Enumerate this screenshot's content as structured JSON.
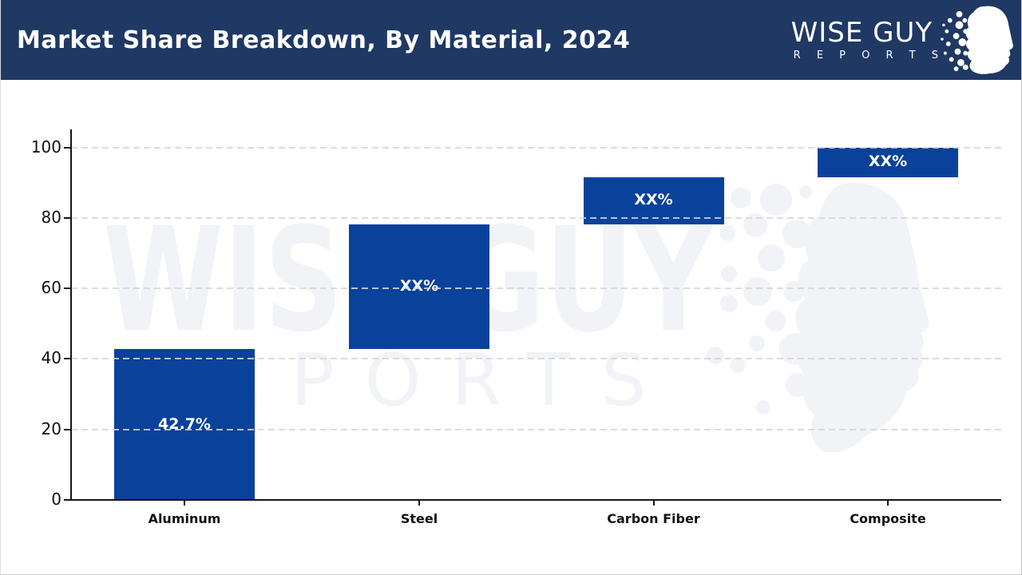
{
  "header": {
    "title": "Market Share Breakdown, By Material, 2024",
    "logo": {
      "line1": "WISE GUY",
      "line2": "R E P O R T S"
    }
  },
  "watermark": {
    "line1": "WISE GUY",
    "line2": "REPORTS"
  },
  "colors": {
    "header_bg": "#1f3864",
    "bar": "#0a429b",
    "grid": "#d9d9d9",
    "axis": "#151515",
    "bar_label": "#ffffff",
    "watermark": "#f2f3f6",
    "background": "#ffffff"
  },
  "chart_data": {
    "type": "bar",
    "subtype": "waterfall",
    "title": "Market Share Breakdown, By Material, 2024",
    "categories": [
      "Aluminum",
      "Steel",
      "Carbon Fiber",
      "Composite"
    ],
    "segments": [
      {
        "category": "Aluminum",
        "start": 0,
        "end": 42.7,
        "label": "42.7%"
      },
      {
        "category": "Steel",
        "start": 42.7,
        "end": 78.2,
        "label": "XX%"
      },
      {
        "category": "Carbon Fiber",
        "start": 78.2,
        "end": 91.6,
        "label": "XX%"
      },
      {
        "category": "Composite",
        "start": 91.6,
        "end": 100,
        "label": "XX%"
      }
    ],
    "yticks": [
      0,
      20,
      40,
      60,
      80,
      100
    ],
    "ylim": [
      0,
      105
    ],
    "xlabel": "",
    "ylabel": "",
    "grid": "dashed-horizontal",
    "legend": "none",
    "note": "waterfall of market share percent; Steel/Carbon Fiber/Composite values redacted as XX% (pixel-estimated start/end)"
  }
}
